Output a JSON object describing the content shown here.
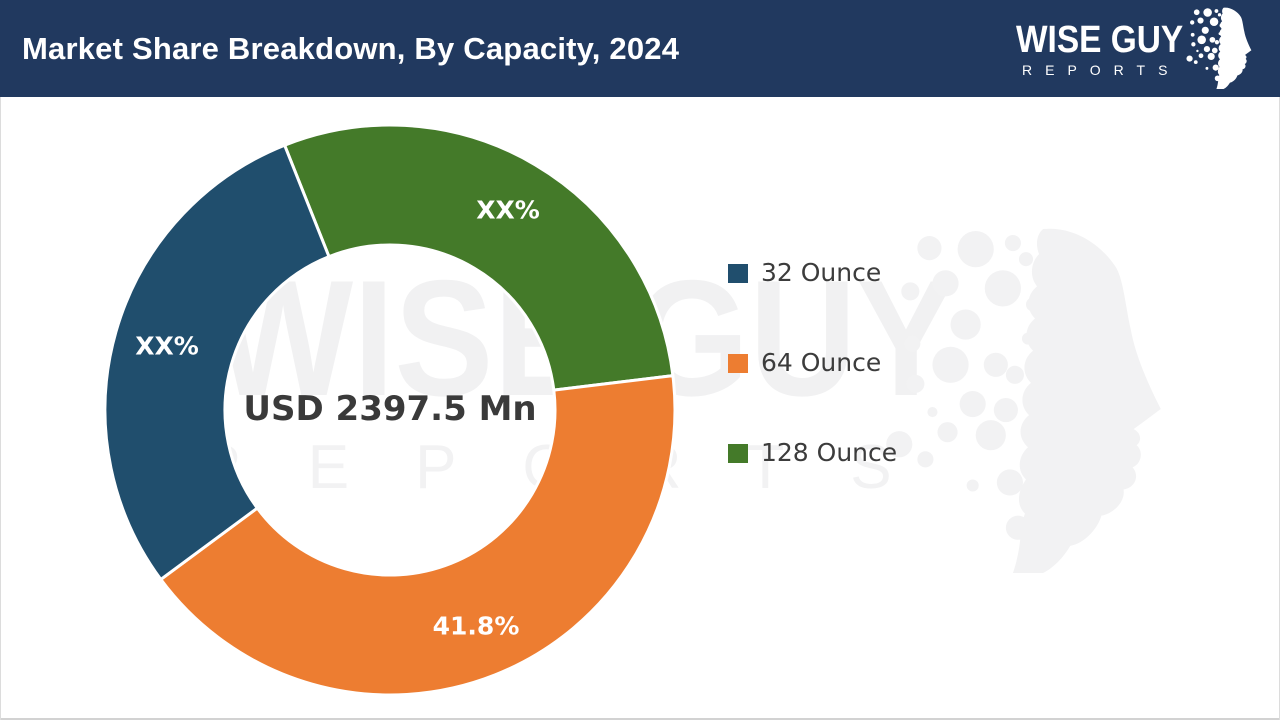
{
  "header": {
    "title": "Market Share Breakdown, By Capacity, 2024",
    "bg_color": "#21395F",
    "title_color": "#ffffff",
    "logo": {
      "line1": "WISE GUY",
      "line2": "REPORTS"
    }
  },
  "watermark": {
    "line1": "WISE GUY",
    "line2": "REPORTS"
  },
  "chart_data": {
    "type": "pie",
    "subtype": "donut",
    "title": "Market Share Breakdown, By Capacity, 2024",
    "center_label": "USD 2397.5 Mn",
    "units": "%",
    "start_angle_deg": -21.7,
    "direction": "clockwise",
    "legend_position": "right",
    "grid": false,
    "segments": [
      {
        "label": "128 Ounce",
        "value_pct": 29.1,
        "display_label": "XX%",
        "color": "#447A29"
      },
      {
        "label": "64 Ounce",
        "value_pct": 41.8,
        "display_label": "41.8%",
        "color": "#ED7D31"
      },
      {
        "label": "32 Ounce",
        "value_pct": 29.1,
        "display_label": "XX%",
        "color": "#204E6D"
      }
    ],
    "legend": [
      {
        "label": "32 Ounce",
        "color": "#204E6D"
      },
      {
        "label": "64 Ounce",
        "color": "#ED7D31"
      },
      {
        "label": "128 Ounce",
        "color": "#447A29"
      }
    ],
    "center_label_color": "#3a3a3a",
    "segment_label_color": "#ffffff"
  }
}
